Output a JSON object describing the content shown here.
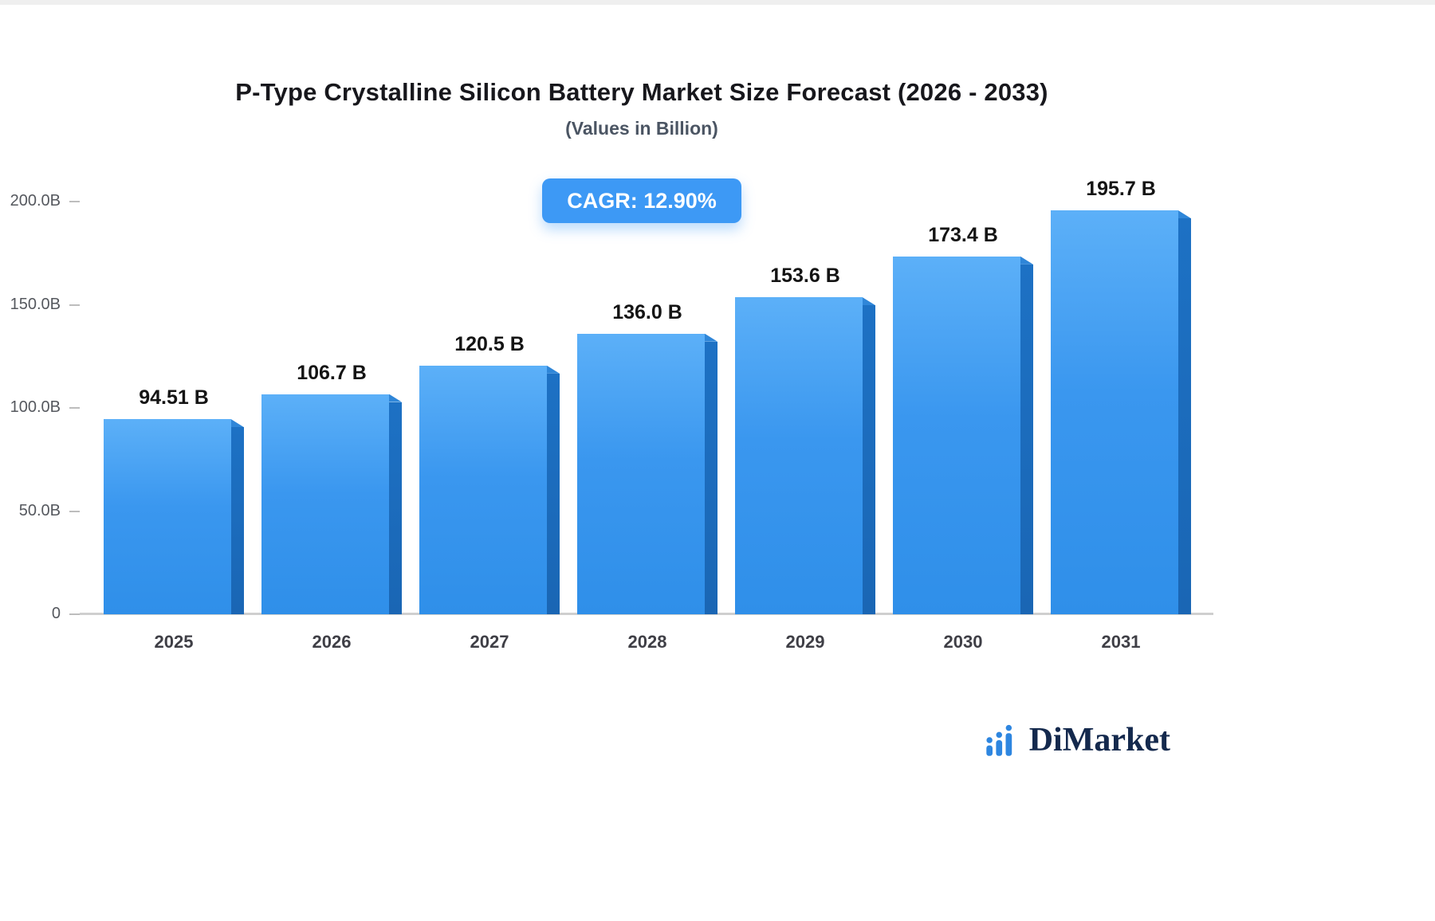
{
  "header": {
    "title": "P-Type Crystalline Silicon Battery Market Size Forecast (2026 - 2033)",
    "subtitle": "(Values in Billion)",
    "cagr_label": "CAGR: 12.90%"
  },
  "brand": {
    "name": "DiMarket",
    "icon": "bar-chart-logo-icon",
    "accent_color": "#2e86e0",
    "text_color": "#14294d"
  },
  "colors": {
    "bar_front": "#3a97ef",
    "bar_side": "#1a66b4",
    "badge_background": "#3d99f5",
    "axis_line": "#cfcfcf"
  },
  "chart_data": {
    "type": "bar",
    "title": "P-Type Crystalline Silicon Battery Market Size Forecast (2026 - 2033)",
    "subtitle": "(Values in Billion)",
    "categories": [
      "2025",
      "2026",
      "2027",
      "2028",
      "2029",
      "2030",
      "2031"
    ],
    "values": [
      94.51,
      106.7,
      120.5,
      136.0,
      153.6,
      173.4,
      195.7
    ],
    "value_labels": [
      "94.51 B",
      "106.7 B",
      "120.5 B",
      "136.0 B",
      "153.6 B",
      "173.4 B",
      "195.7 B"
    ],
    "xlabel": "",
    "ylabel": "",
    "ylim": [
      0,
      200
    ],
    "grid": false,
    "legend": false,
    "yticks": [
      {
        "value": 0,
        "label": "0"
      },
      {
        "value": 50,
        "label": "50.0B"
      },
      {
        "value": 100,
        "label": "100.0B"
      },
      {
        "value": 150,
        "label": "150.0B"
      },
      {
        "value": 200,
        "label": "200.0B"
      }
    ],
    "annotation": "CAGR: 12.90%"
  }
}
